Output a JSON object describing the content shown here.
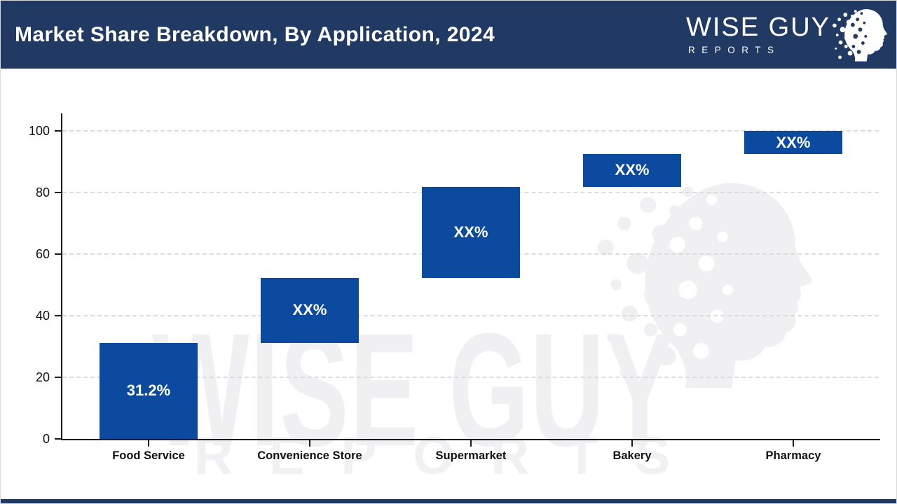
{
  "header": {
    "title": "Market Share Breakdown, By Application, 2024",
    "logo": {
      "name": "WISE GUY",
      "tagline": "REPORTS"
    }
  },
  "watermark": {
    "line1": "WISE GUY",
    "line2": "REPORTS"
  },
  "chart_data": {
    "type": "bar",
    "variant": "waterfall",
    "title": "Market Share Breakdown, By Application, 2024",
    "categories": [
      "Food Service",
      "Convenience Store",
      "Supermarket",
      "Bakery",
      "Pharmacy"
    ],
    "segments": [
      {
        "category": "Food Service",
        "start": 0,
        "end": 31.2,
        "value": 31.2,
        "label": "31.2%"
      },
      {
        "category": "Convenience Store",
        "start": 31.2,
        "end": 52.3,
        "value": 21.1,
        "label": "XX%"
      },
      {
        "category": "Supermarket",
        "start": 52.3,
        "end": 81.9,
        "value": 29.6,
        "label": "XX%"
      },
      {
        "category": "Bakery",
        "start": 81.9,
        "end": 92.5,
        "value": 10.6,
        "label": "XX%"
      },
      {
        "category": "Pharmacy",
        "start": 92.5,
        "end": 100,
        "value": 7.5,
        "label": "XX%"
      }
    ],
    "xlabel": "",
    "ylabel": "",
    "ylim": [
      0,
      100
    ],
    "yticks": [
      0,
      20,
      40,
      60,
      80,
      100
    ],
    "grid": "horizontal-dashed",
    "legend": "none"
  },
  "colors": {
    "header_bg": "#213A63",
    "footer_bg": "#213A63",
    "bar": "#0B4A9E",
    "bar_label": "#FFFFFF",
    "axis": "#1A1A1A",
    "grid": "#DCDCDC",
    "watermark": "#F0F0F2"
  }
}
